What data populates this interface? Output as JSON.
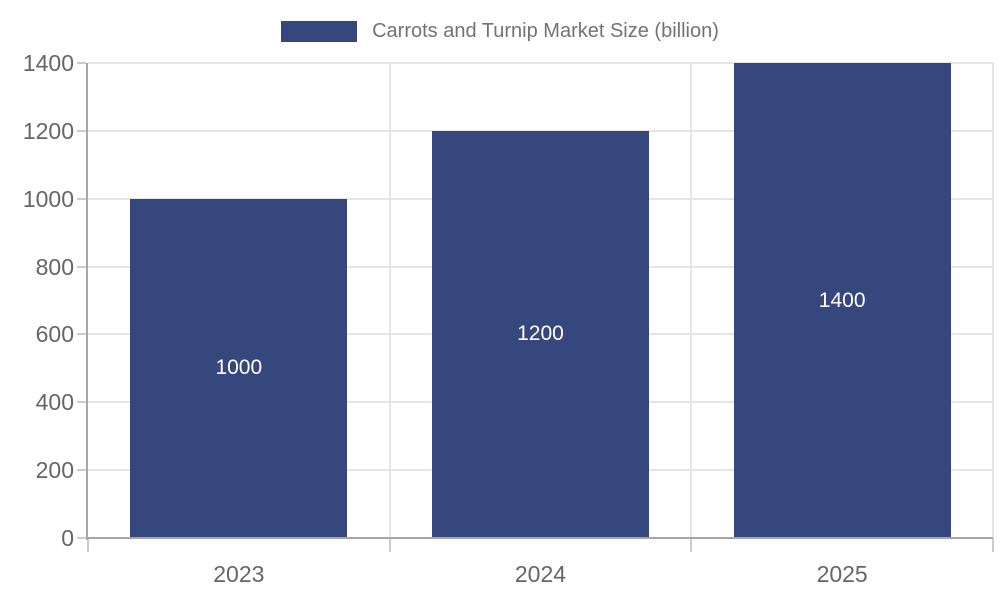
{
  "chart_data": {
    "type": "bar",
    "title": "Carrots and Turnip Market Size (billion)",
    "categories": [
      "2023",
      "2024",
      "2025"
    ],
    "values": [
      1000,
      1200,
      1400
    ],
    "bar_value_labels": [
      "1000",
      "1200",
      "1400"
    ],
    "yticks": [
      0,
      200,
      400,
      600,
      800,
      1000,
      1200,
      1400
    ],
    "ylim": [
      0,
      1400
    ],
    "xlabel": "",
    "ylabel": "",
    "grid": true,
    "legend_position": "top"
  },
  "colors": {
    "bar": "#36477E",
    "grid": "#E5E5E5",
    "axis": "#A6A6A6",
    "tick": "#CCCCCC",
    "tick_label": "#666666",
    "legend_text": "#737373",
    "bar_label": "#FFFFFF",
    "background": "#FFFFFF"
  }
}
